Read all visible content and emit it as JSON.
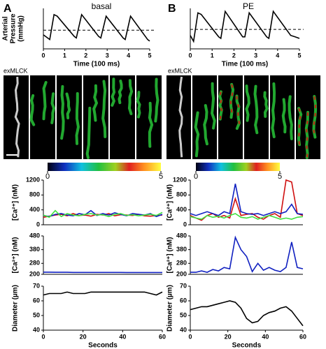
{
  "figure": {
    "panels": [
      {
        "label": "A",
        "title": "basal"
      },
      {
        "label": "B",
        "title": "PE"
      }
    ],
    "image_label": "exMLCK",
    "colorbar_ticks": [
      0,
      5
    ]
  },
  "chart_data": [
    {
      "type": "line",
      "ylabel": [
        "Arterial",
        "Pressure",
        "(mmHg)"
      ],
      "xlabel": "Time (100 ms)",
      "x": [
        0,
        0.3,
        0.5,
        0.65,
        1.45,
        1.55,
        1.8,
        2.6,
        2.7,
        2.95,
        3.75,
        3.85,
        4.1,
        4.9,
        5
      ],
      "series": [
        {
          "color": "#000000",
          "values": [
            89,
            86,
            102,
            101,
            88,
            87,
            102,
            88,
            87,
            101,
            87,
            86,
            101,
            86,
            85
          ]
        }
      ],
      "reference_line": 92,
      "xlim": [
        0,
        5
      ],
      "ylim": [
        80,
        106
      ],
      "xticks": [
        0,
        1,
        2,
        3,
        4,
        5
      ]
    },
    {
      "type": "line",
      "ylabel": [
        "[Ca²⁺] (nM)"
      ],
      "x": [
        0,
        3,
        6,
        9,
        12,
        15,
        18,
        21,
        24,
        27,
        30,
        33,
        36,
        39,
        42,
        45,
        48,
        51,
        54,
        57,
        60
      ],
      "series": [
        {
          "color": "#d01010",
          "values": [
            200,
            230,
            260,
            280,
            240,
            300,
            250,
            260,
            230,
            280,
            260,
            300,
            240,
            270,
            260,
            250,
            280,
            240,
            230,
            250,
            260
          ]
        },
        {
          "color": "#1020c0",
          "values": [
            250,
            220,
            280,
            300,
            260,
            240,
            300,
            270,
            380,
            250,
            300,
            260,
            320,
            280,
            240,
            300,
            280,
            260,
            300,
            220,
            280
          ]
        },
        {
          "color": "#40e040",
          "values": [
            260,
            200,
            380,
            220,
            300,
            260,
            240,
            280,
            300,
            260,
            270,
            220,
            280,
            300,
            250,
            270,
            240,
            260,
            280,
            250,
            330
          ]
        }
      ],
      "xlim": [
        0,
        60
      ],
      "ylim": [
        0,
        1200
      ],
      "yticks": [
        0,
        400,
        800,
        1200
      ]
    },
    {
      "type": "line",
      "ylabel": [
        "[Ca²⁺] (nM)"
      ],
      "x": [
        0,
        3,
        6,
        9,
        12,
        15,
        18,
        21,
        24,
        27,
        30,
        33,
        36,
        39,
        42,
        45,
        48,
        51,
        54,
        57,
        60
      ],
      "series": [
        {
          "color": "#1020c0",
          "values": [
            216,
            216,
            215,
            215,
            215,
            214,
            214,
            214,
            214,
            214,
            214,
            214,
            214,
            214,
            213,
            213,
            213,
            213,
            213,
            213,
            213
          ]
        }
      ],
      "xlim": [
        0,
        60
      ],
      "ylim": [
        200,
        480
      ],
      "yticks": [
        200,
        280,
        380,
        480
      ]
    },
    {
      "type": "line",
      "ylabel": [
        "Diameter (µm)"
      ],
      "xlabel": "Seconds",
      "x": [
        0,
        3,
        6,
        9,
        12,
        15,
        18,
        21,
        24,
        27,
        30,
        33,
        36,
        39,
        42,
        45,
        48,
        51,
        54,
        57,
        60
      ],
      "series": [
        {
          "color": "#000000",
          "values": [
            64,
            65,
            65,
            65,
            66,
            65,
            65,
            65,
            66,
            66,
            66,
            66,
            66,
            66,
            66,
            66,
            66,
            66,
            65,
            64,
            66
          ]
        }
      ],
      "xlim": [
        0,
        60
      ],
      "ylim": [
        40,
        70
      ],
      "xticks": [
        0,
        20,
        40,
        60
      ],
      "yticks": [
        40,
        50,
        60,
        70
      ]
    },
    {
      "type": "line",
      "xlabel": "Time (100 ms)",
      "x": [
        0,
        0.15,
        0.35,
        0.5,
        1.3,
        1.4,
        1.6,
        2.4,
        2.5,
        2.7,
        3.5,
        3.6,
        3.8,
        4.6,
        4.8,
        5
      ],
      "series": [
        {
          "color": "#000000",
          "values": [
            94,
            90,
            109,
            108,
            93,
            92,
            110,
            93,
            93,
            109,
            93,
            92,
            110,
            94,
            93,
            92
          ]
        }
      ],
      "reference_line": 98,
      "xlim": [
        0,
        5
      ],
      "ylim": [
        85,
        112
      ],
      "xticks": [
        0,
        1,
        2,
        3,
        4,
        5
      ]
    },
    {
      "type": "line",
      "ylabel": [
        "[Ca²⁺] (nM)"
      ],
      "x": [
        0,
        3,
        6,
        9,
        12,
        15,
        18,
        21,
        24,
        27,
        30,
        33,
        36,
        39,
        42,
        45,
        48,
        51,
        54,
        57,
        60
      ],
      "series": [
        {
          "color": "#d01010",
          "values": [
            250,
            180,
            120,
            250,
            300,
            200,
            250,
            180,
            700,
            250,
            280,
            300,
            200,
            150,
            250,
            300,
            200,
            1200,
            1150,
            300,
            250
          ]
        },
        {
          "color": "#1020c0",
          "values": [
            300,
            250,
            300,
            350,
            300,
            250,
            350,
            300,
            1100,
            350,
            300,
            280,
            300,
            250,
            300,
            350,
            300,
            350,
            550,
            300,
            280
          ]
        },
        {
          "color": "#40e040",
          "values": [
            220,
            180,
            150,
            250,
            200,
            230,
            180,
            250,
            300,
            200,
            180,
            220,
            150,
            200,
            250,
            200,
            150,
            180,
            150,
            200,
            220
          ]
        }
      ],
      "xlim": [
        0,
        60
      ],
      "ylim": [
        0,
        1200
      ],
      "yticks": [
        0,
        400,
        800,
        1200
      ]
    },
    {
      "type": "line",
      "ylabel": [
        "[Ca²⁺] (nM)"
      ],
      "x": [
        0,
        3,
        6,
        9,
        12,
        15,
        18,
        21,
        24,
        27,
        30,
        33,
        36,
        39,
        42,
        45,
        48,
        51,
        54,
        57,
        60
      ],
      "series": [
        {
          "color": "#1020c0",
          "values": [
            215,
            215,
            225,
            215,
            235,
            225,
            250,
            240,
            470,
            380,
            330,
            220,
            280,
            230,
            250,
            230,
            220,
            250,
            435,
            250,
            240
          ]
        }
      ],
      "xlim": [
        0,
        60
      ],
      "ylim": [
        200,
        480
      ],
      "yticks": [
        200,
        280,
        380,
        480
      ]
    },
    {
      "type": "line",
      "ylabel": [
        "Diameter (µm)"
      ],
      "xlabel": "Seconds",
      "x": [
        0,
        3,
        6,
        9,
        12,
        15,
        18,
        21,
        24,
        27,
        30,
        33,
        36,
        39,
        42,
        45,
        48,
        51,
        54,
        57,
        60
      ],
      "series": [
        {
          "color": "#000000",
          "values": [
            54,
            55,
            56,
            56,
            57,
            58,
            59,
            60,
            59,
            55,
            48,
            45,
            46,
            50,
            52,
            53,
            55,
            56,
            53,
            48,
            43
          ]
        }
      ],
      "xlim": [
        0,
        60
      ],
      "ylim": [
        40,
        70
      ],
      "xticks": [
        0,
        20,
        40,
        60
      ],
      "yticks": [
        40,
        50,
        60,
        70
      ]
    }
  ]
}
